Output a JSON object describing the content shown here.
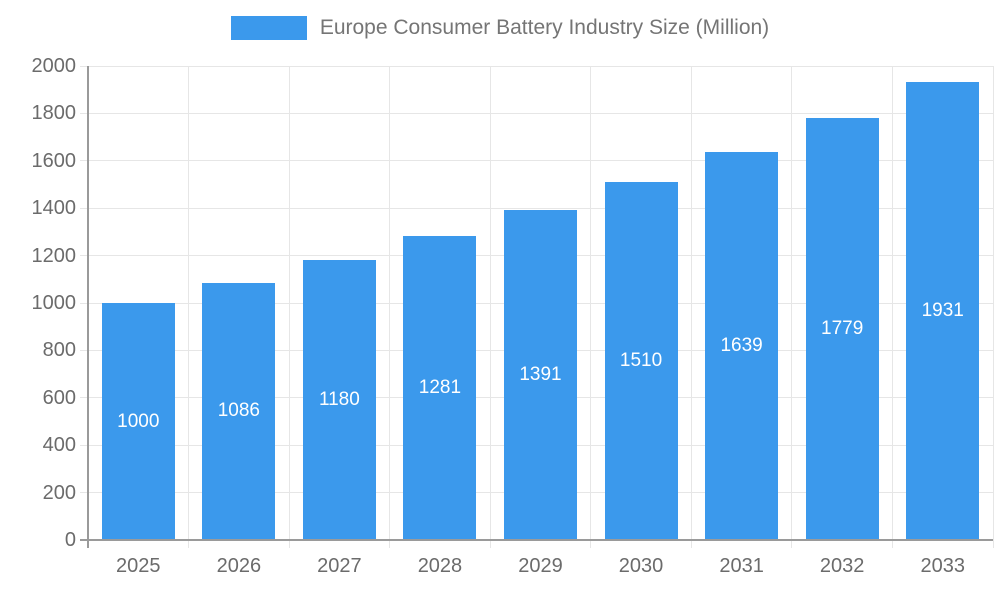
{
  "chart_data": {
    "type": "bar",
    "title": "Europe Consumer Battery Industry Size (Million)",
    "series": [
      {
        "name": "Europe Consumer Battery Industry Size (Million)",
        "values": [
          1000,
          1086,
          1180,
          1281,
          1391,
          1510,
          1639,
          1779,
          1931
        ]
      }
    ],
    "categories": [
      "2025",
      "2026",
      "2027",
      "2028",
      "2029",
      "2030",
      "2031",
      "2032",
      "2033"
    ],
    "values": [
      1000,
      1086,
      1180,
      1281,
      1391,
      1510,
      1639,
      1779,
      1931
    ],
    "xlabel": "",
    "ylabel": "",
    "ylim": [
      0,
      2000
    ],
    "y_ticks": [
      0,
      200,
      400,
      600,
      800,
      1000,
      1200,
      1400,
      1600,
      1800,
      2000
    ],
    "grid": true,
    "legend_position": "top",
    "bar_color": "#3B99EC",
    "value_label_color": "#ffffff"
  },
  "legend": {
    "label": "Europe Consumer Battery Industry Size (Million)"
  }
}
